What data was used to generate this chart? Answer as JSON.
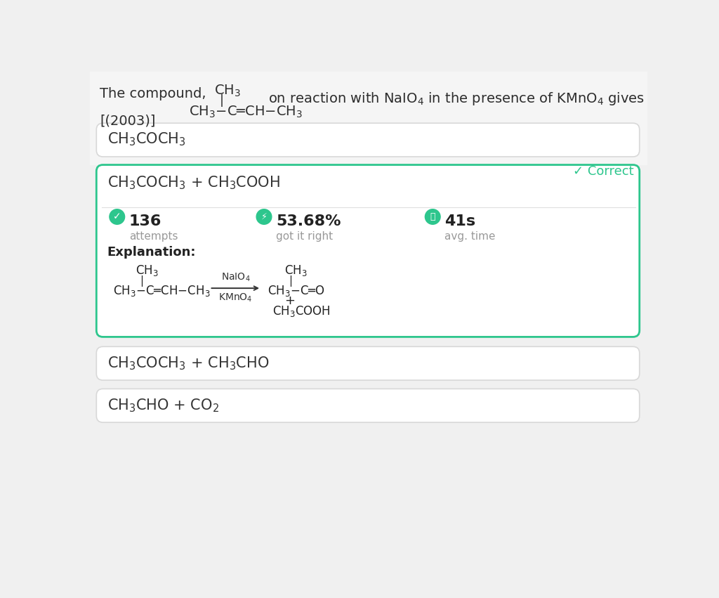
{
  "bg_color": "#f0f0f0",
  "white": "#ffffff",
  "green_border": "#2dc68d",
  "green_icon": "#2dc68d",
  "dark_text": "#2d2d2d",
  "gray_text": "#999999",
  "border_color": "#d8d8d8",
  "q_compound": "The compound,",
  "q_reagent": "on reaction with NaIO$_4$ in the presence of KMnO$_4$ gives",
  "q_year": "[(2003)]",
  "opt1": "CH$_3$COCH$_3$",
  "opt2": "CH$_3$COCH$_3$ + CH$_3$COOH",
  "opt3": "CH$_3$COCH$_3$ + CH$_3$CHO",
  "opt4": "CH$_3$CHO + CO$_2$",
  "correct_label": " Correct",
  "stat1_num": "136",
  "stat1_lbl": "attempts",
  "stat2_num": "53.68%",
  "stat2_lbl": "got it right",
  "stat3_num": "41s",
  "stat3_lbl": "avg. time",
  "exp_label": "Explanation:"
}
